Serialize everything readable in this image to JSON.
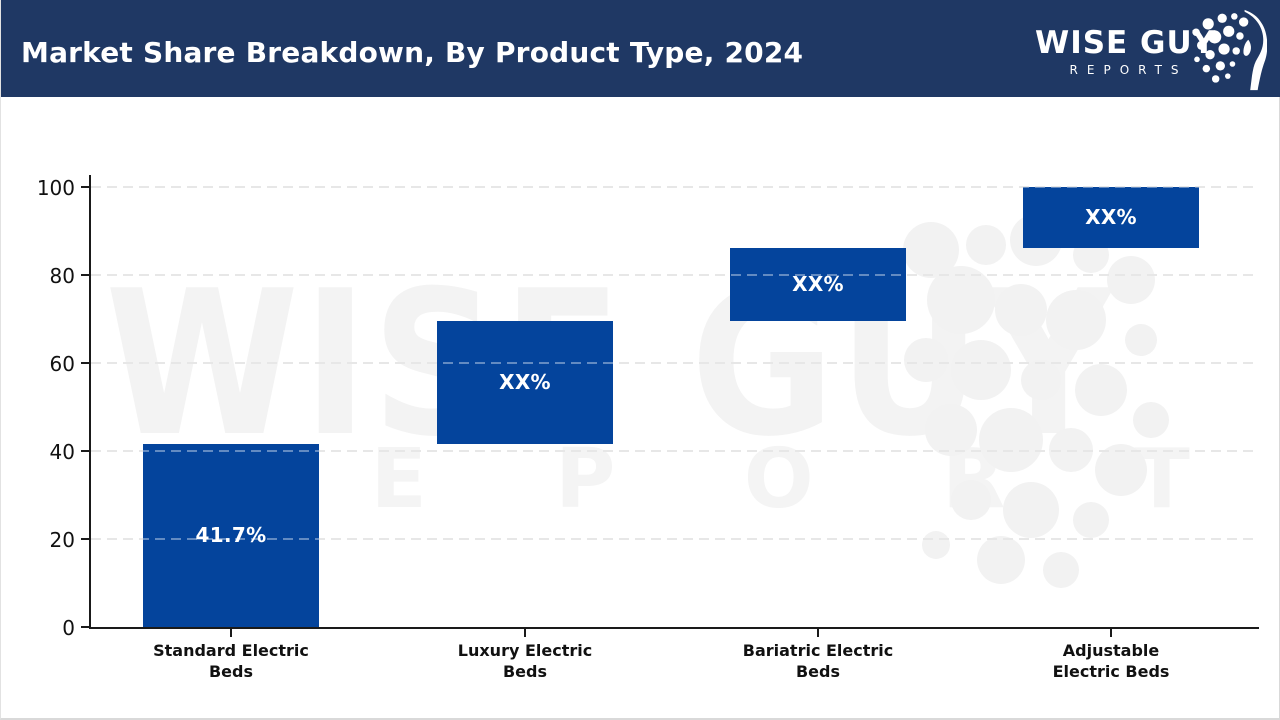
{
  "header": {
    "title": "Market Share Breakdown, By Product Type, 2024",
    "logo": {
      "line1": "WISE GUY",
      "line2": "REPORTS"
    }
  },
  "watermark": {
    "line1": "WISE GUY",
    "line2": "R E P O R T S"
  },
  "chart_data": {
    "type": "bar",
    "variant": "floating-cumulative-percentage-bars",
    "title": "Market Share Breakdown, By Product Type, 2024",
    "categories": [
      "Standard Electric Beds",
      "Luxury Electric Beds",
      "Bariatric Electric Beds",
      "Adjustable Electric Beds"
    ],
    "cat_lines": [
      [
        "Standard Electric",
        "Beds"
      ],
      [
        "Luxury Electric",
        "Beds"
      ],
      [
        "Bariatric Electric",
        "Beds"
      ],
      [
        "Adjustable",
        "Electric Beds"
      ]
    ],
    "bars": [
      {
        "category": "Standard Electric Beds",
        "start": 0,
        "end": 41.7,
        "label": "41.7%"
      },
      {
        "category": "Luxury Electric Beds",
        "start": 41.7,
        "end": 69.5,
        "label": "XX%"
      },
      {
        "category": "Bariatric Electric Beds",
        "start": 69.5,
        "end": 86.2,
        "label": "XX%"
      },
      {
        "category": "Adjustable Electric Beds",
        "start": 86.2,
        "end": 100,
        "label": "XX%"
      }
    ],
    "xlabel": "",
    "ylabel": "",
    "ylim": [
      0,
      100
    ],
    "yticks": [
      0,
      20,
      40,
      60,
      80,
      100
    ],
    "grid": "dashed-horizontal",
    "legend": "none",
    "bar_color": "#04449c",
    "bar_label_color": "#ffffff"
  },
  "colors": {
    "header_bg": "#1f3864",
    "bar": "#04449c",
    "grid": "#d8d8d8",
    "axis": "#1a1a1a",
    "text": "#111111",
    "watermark": "#f2f2f2"
  }
}
